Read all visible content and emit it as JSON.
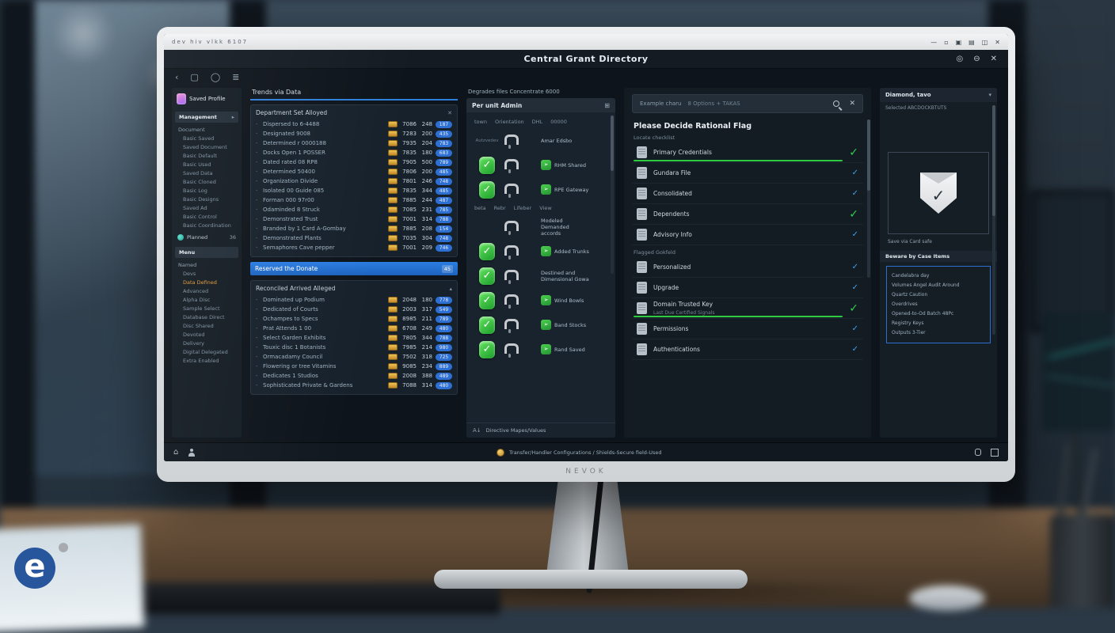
{
  "colors": {
    "accent_blue": "#2e7fd9",
    "success_green": "#2ecb4b",
    "badge_yellow": "#e0a73e",
    "check_blue": "#3fa3e8",
    "selected_blue": "#2273d6"
  },
  "icons": {
    "back": "‹",
    "copy": "▢",
    "record": "◯",
    "stack": "≣",
    "close": "✕",
    "chevron_right": "▸",
    "chevron_up": "▴",
    "chevron_down": "▾",
    "check": "✓",
    "minimize": "—",
    "win1": "▫",
    "win2": "▣",
    "win3": "▤",
    "win4": "◫",
    "circle1": "◎",
    "circle2": "⊖",
    "home": "⌂",
    "expand": "⊞",
    "sort": "A↓"
  },
  "os_bar": {
    "menu_text": "dev  hiv  vlkk  6107"
  },
  "titlebar": {
    "title": "Central Grant Directory"
  },
  "monitor": {
    "brand": "NEVOK"
  },
  "brand": {
    "letter": "e"
  },
  "sidebar": {
    "profile_label": "Saved Profile",
    "section1": {
      "header": "Management",
      "subheader": "Document",
      "items": [
        "Basic Saved",
        "Saved Document",
        "Basic Default",
        "Basic Used",
        "Saved Data",
        "Basic Cloned",
        "Basic Log",
        "Basic Designs",
        "Saved Ad",
        "Basic Control",
        "Basic Coordination"
      ]
    },
    "planned": {
      "label": "Planned",
      "count": "36"
    },
    "section2": {
      "header": "Menu",
      "subheader": "Named",
      "items": [
        {
          "label": "Devs"
        },
        {
          "label": "Data Defined",
          "highlight": true
        },
        {
          "label": "Advanced"
        },
        {
          "label": "Alpha Disc"
        },
        {
          "label": "Sample Select"
        },
        {
          "label": "Database Direct"
        },
        {
          "label": "Disc Shared"
        },
        {
          "label": "Devoted"
        },
        {
          "label": "Delivery"
        },
        {
          "label": "Digital Delegated"
        },
        {
          "label": "Extra Enabled"
        }
      ]
    }
  },
  "midleft": {
    "tab_title": "Trends via Data",
    "card1": {
      "title": "Department Set Alloyed",
      "rows": [
        {
          "name": "Dispersed to 6-4488",
          "a": "7086",
          "b": "248",
          "badge": "187"
        },
        {
          "name": "Designated 9008",
          "a": "7283",
          "b": "200",
          "badge": "435"
        },
        {
          "name": "Determined r 0000188",
          "a": "7935",
          "b": "204",
          "badge": "783"
        },
        {
          "name": "Docks Open 1 POSSER",
          "a": "7835",
          "b": "180",
          "badge": "683"
        },
        {
          "name": "Dated rated 08 RP8",
          "a": "7905",
          "b": "500",
          "badge": "789"
        },
        {
          "name": "Determined 50400",
          "a": "7806",
          "b": "200",
          "badge": "485"
        },
        {
          "name": "Organization Divide",
          "a": "7801",
          "b": "246",
          "badge": "748"
        },
        {
          "name": "Isolated 00 Guide 085",
          "a": "7835",
          "b": "344",
          "badge": "485"
        },
        {
          "name": "Forman 000 97r00",
          "a": "7885",
          "b": "244",
          "badge": "487"
        },
        {
          "name": "Odaminded 8 Struck",
          "a": "7085",
          "b": "231",
          "badge": "785"
        },
        {
          "name": "Demonstrated Trust",
          "a": "7001",
          "b": "314",
          "badge": "788"
        },
        {
          "name": "Branded by 1 Card A-Gombay",
          "a": "7885",
          "b": "208",
          "badge": "154"
        },
        {
          "name": "Demonstrated Plants",
          "a": "7035",
          "b": "304",
          "badge": "748"
        },
        {
          "name": "Semaphores Cave pepper",
          "a": "7001",
          "b": "209",
          "badge": "746"
        }
      ]
    },
    "selected_row": {
      "label": "Reserved the Donate",
      "badge": "45"
    },
    "card2": {
      "title": "Reconciled Arrived Alleged",
      "rows": [
        {
          "name": "Dominated up Podium",
          "a": "2048",
          "b": "180",
          "badge": "778"
        },
        {
          "name": "Dedicated of Courts",
          "a": "2003",
          "b": "317",
          "badge": "549"
        },
        {
          "name": "Ochampes to Specs",
          "a": "8985",
          "b": "211",
          "badge": "789"
        },
        {
          "name": "Prat Attends 1 00",
          "a": "6708",
          "b": "249",
          "badge": "480"
        },
        {
          "name": "Select Garden Exhibits",
          "a": "7805",
          "b": "344",
          "badge": "788"
        },
        {
          "name": "Touxic disc 1 Botanists",
          "a": "7985",
          "b": "214",
          "badge": "980"
        },
        {
          "name": "Ormacadamy Council",
          "a": "7502",
          "b": "318",
          "badge": "725"
        },
        {
          "name": "Flowering or tree Vitamins",
          "a": "9085",
          "b": "234",
          "badge": "889"
        },
        {
          "name": "Dedicates 1 Studios",
          "a": "2008",
          "b": "388",
          "badge": "489"
        },
        {
          "name": "Sophisticated Private & Gardens",
          "a": "7088",
          "b": "314",
          "badge": "480"
        }
      ]
    }
  },
  "locks": {
    "caption": "Degrades files Concentrate 6000",
    "header": "Per unit Admin",
    "filters1": [
      {
        "label": "town"
      },
      {
        "label": "Orientation",
        "active": true
      },
      {
        "label": "DHL"
      },
      {
        "label": "00000"
      }
    ],
    "filters2": [
      {
        "label": "beta"
      },
      {
        "label": "Rebr"
      },
      {
        "label": "Lifeber"
      },
      {
        "label": "View"
      }
    ],
    "rows1": [
      {
        "check": false,
        "note": "Autzvedev",
        "label": "Amar Edsbo",
        "chip": false
      },
      {
        "check": true,
        "label": "RHM Shared",
        "chip": true
      },
      {
        "check": true,
        "label": "RPE Gateway",
        "chip": true
      }
    ],
    "rows2": [
      {
        "check": false,
        "label": "Modeled Demanded accords",
        "chip": false
      },
      {
        "check": true,
        "label": "Added Trunks",
        "chip": true
      },
      {
        "check": true,
        "label": "Destined and Dimensional Gowa",
        "chip": false
      },
      {
        "check": true,
        "label": "Wind Bowls",
        "chip": true
      },
      {
        "check": true,
        "label": "Band Stocks",
        "chip": true
      },
      {
        "check": true,
        "label": "Rand Saved",
        "chip": true
      }
    ],
    "footer_icon": "A↓",
    "footer": "Directive Mapes/Values"
  },
  "checklist": {
    "search_text": "Example charu",
    "search_scope": "8 Options + TAKAS",
    "title": "Please Decide Rational Flag",
    "sections": [
      {
        "label": "Locate checklist",
        "items": [
          {
            "label": "Primary Credentials",
            "check": "green",
            "underline": true
          },
          {
            "label": "Gundara File",
            "check": "blue"
          },
          {
            "label": "Consolidated",
            "check": "blue"
          },
          {
            "label": "Dependents",
            "check": "green"
          },
          {
            "label": "Advisory Info",
            "check": "blue"
          }
        ]
      },
      {
        "label": "Flagged Gokfeld",
        "items": [
          {
            "label": "Personalized",
            "check": "blue"
          },
          {
            "label": "Upgrade",
            "check": "blue"
          },
          {
            "label": "Domain Trusted Key",
            "check": "green",
            "underline": true,
            "caption": "Last Due Certified Signals"
          },
          {
            "label": "Permissions",
            "check": "blue"
          },
          {
            "label": "Authentications",
            "check": "blue"
          }
        ]
      }
    ]
  },
  "details": {
    "header": "Diamond, tavo",
    "subtitle": "Selected ABCDOCKBTUTS",
    "shield_label": "Save via Card safe",
    "list_header": "Beware by Case Items",
    "list": [
      "Candelabra day",
      "Volumes Angel Audit Around",
      "Quartz Caution",
      "Overdrives",
      "Opened-to-Od Batch 48Pc",
      "Registry Keys",
      "Outputs 3-Tier"
    ]
  },
  "statusbar": {
    "message": "Transfer/Handler Configurations / Shields-Secure field-Used"
  }
}
